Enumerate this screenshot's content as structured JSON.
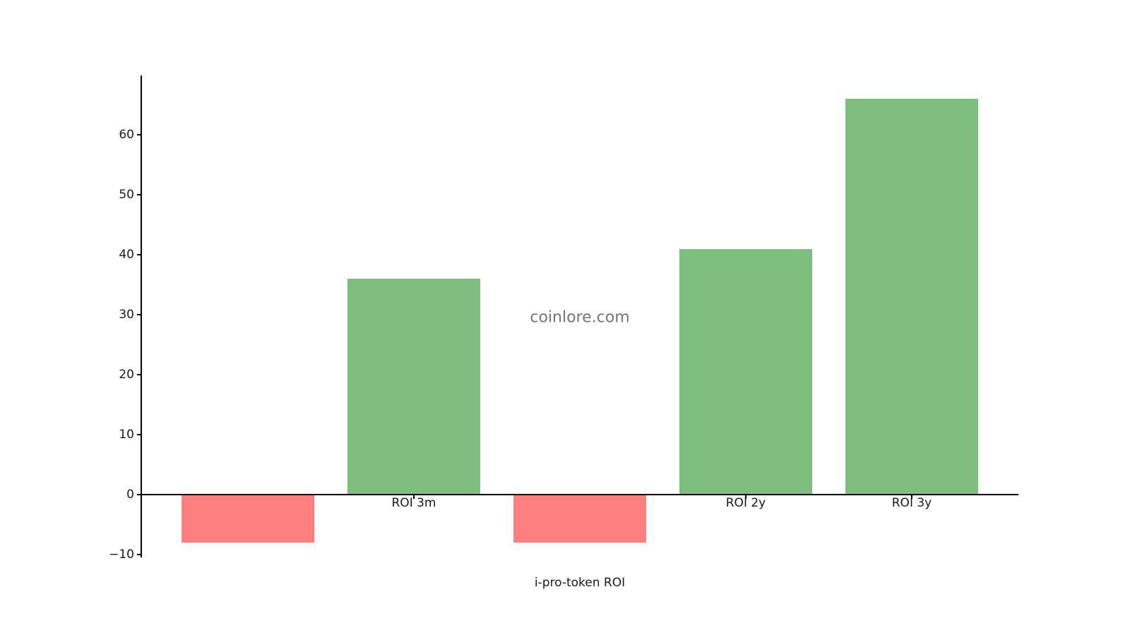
{
  "chart_data": {
    "type": "bar",
    "title": "i-pro-token ROI",
    "xlabel": "i-pro-token ROI",
    "ylabel": "",
    "watermark": "coinlore.com",
    "categories": [
      "",
      "ROI 3m",
      "",
      "ROI 2y",
      "ROI 3y"
    ],
    "values": [
      -8,
      36,
      -8,
      41,
      66
    ],
    "bar_colors": [
      "#ff8080",
      "#7ebf7f",
      "#ff8080",
      "#7ebf7f",
      "#7ebf7f"
    ],
    "positive_color": "#7ebf7f",
    "negative_color": "#ff8080",
    "yticks": [
      -10,
      0,
      10,
      20,
      30,
      40,
      50,
      60
    ],
    "ylim": [
      -10.5,
      70
    ],
    "xtick_labels_visible": [
      "ROI 3m",
      "ROI 2y",
      "ROI 3y"
    ],
    "note_hidden_labels": "x tick labels of the two negative bars are obscured by the red bars",
    "grid": false,
    "legend_position": "none",
    "axis_color": "#000000",
    "tick_label_color": "#1a1a1a",
    "watermark_color": "#757575"
  }
}
